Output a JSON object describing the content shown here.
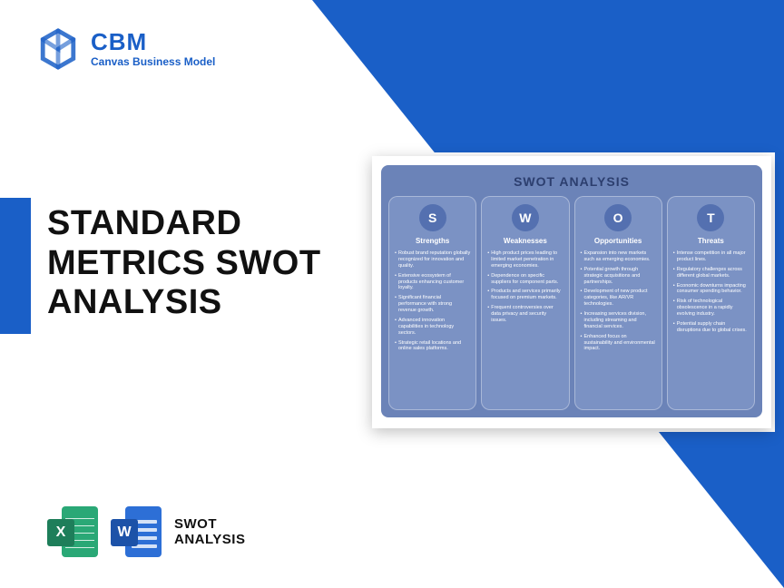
{
  "brand": {
    "name": "CBM",
    "tagline": "Canvas Business Model",
    "color": "#1a5fc7"
  },
  "accent_bar_color": "#1a5fc7",
  "bg_triangle_color": "#1a5fc7",
  "main_title": "STANDARD METRICS SWOT ANALYSIS",
  "swot": {
    "title": "SWOT ANALYSIS",
    "panel_bg": "#6b83b8",
    "title_color": "#2c3e6e",
    "col_bg": "#7b92c4",
    "circle_bg": "#5470b0",
    "columns": [
      {
        "letter": "S",
        "heading": "Strengths",
        "items": [
          "Robust brand reputation globally recognized for innovation and quality.",
          "Extensive ecosystem of products enhancing customer loyalty.",
          "Significant financial performance with strong revenue growth.",
          "Advanced innovation capabilities in technology sectors.",
          "Strategic retail locations and online sales platforms."
        ]
      },
      {
        "letter": "W",
        "heading": "Weaknesses",
        "items": [
          "High product prices leading to limited market penetration in emerging economies.",
          "Dependence on specific suppliers for component parts.",
          "Products and services primarily focused on premium markets.",
          "Frequent controversies over data privacy and security issues."
        ]
      },
      {
        "letter": "O",
        "heading": "Opportunities",
        "items": [
          "Expansion into new markets such as emerging economies.",
          "Potential growth through strategic acquisitions and partnerships.",
          "Development of new product categories, like AR/VR technologies.",
          "Increasing services division, including streaming and financial services.",
          "Enhanced focus on sustainability and environmental impact."
        ]
      },
      {
        "letter": "T",
        "heading": "Threats",
        "items": [
          "Intense competition in all major product lines.",
          "Regulatory challenges across different global markets.",
          "Economic downturns impacting consumer spending behavior.",
          "Risk of technological obsolescence in a rapidly evolving industry.",
          "Potential supply chain disruptions due to global crises."
        ]
      }
    ]
  },
  "formats": {
    "label_line1": "SWOT",
    "label_line2": "ANALYSIS",
    "excel": {
      "letter": "X",
      "page_color": "#2aa876",
      "badge_color": "#1e7e5a"
    },
    "word": {
      "letter": "W",
      "page_color": "#2d6fd6",
      "badge_color": "#1c52a8"
    }
  }
}
